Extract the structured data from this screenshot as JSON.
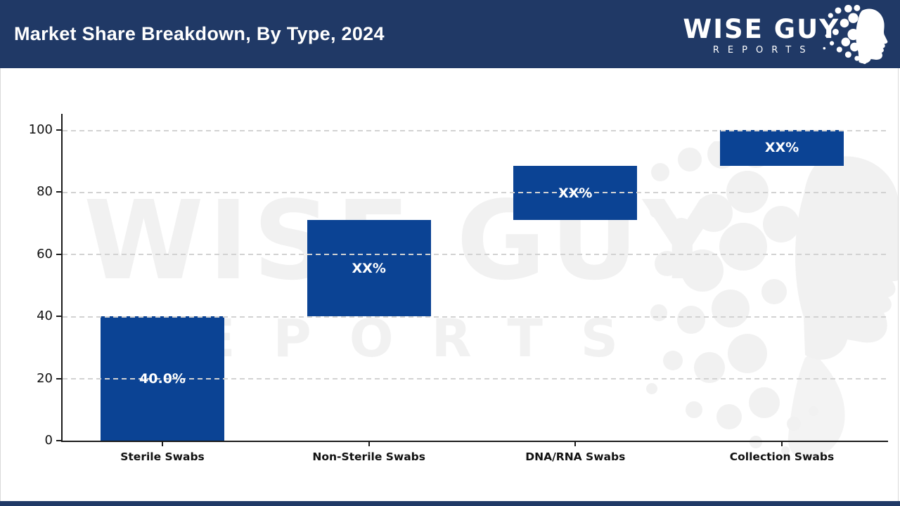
{
  "header": {
    "title": "Market Share Breakdown, By Type, 2024",
    "logo": {
      "line1": "WISE GUY",
      "line2": "REPORTS",
      "face_icon": "dotted-face-profile"
    }
  },
  "watermark": {
    "line1": "WISE GUY",
    "line2": "REPORTS",
    "face_icon": "dotted-face-profile"
  },
  "colors": {
    "header_bg": "#203966",
    "footer_bg": "#203966",
    "bar_fill": "#0b4394",
    "bar_label_text": "#ffffff",
    "grid_line": "#d2d2d2",
    "axis_line": "#1a1a1a",
    "tick_text": "#111111",
    "watermark": "#f1f1f1",
    "panel_border": "#d9d9d9"
  },
  "chart_data": {
    "type": "bar",
    "variant": "floating-cumulative-segments",
    "title": "Market Share Breakdown, By Type, 2024",
    "categories": [
      "Sterile Swabs",
      "Non-Sterile Swabs",
      "DNA/RNA Swabs",
      "Collection Swabs"
    ],
    "bars": [
      {
        "category": "Sterile Swabs",
        "start": 0,
        "end": 40,
        "label": "40.0%"
      },
      {
        "category": "Non-Sterile Swabs",
        "start": 40,
        "end": 71,
        "label": "XX%"
      },
      {
        "category": "DNA/RNA Swabs",
        "start": 71,
        "end": 88.5,
        "label": "XX%"
      },
      {
        "category": "Collection Swabs",
        "start": 88.5,
        "end": 100,
        "label": "XX%"
      }
    ],
    "yticks": [
      0,
      20,
      40,
      60,
      80,
      100
    ],
    "ylim": [
      0,
      105
    ],
    "xlabel": "",
    "ylabel": "",
    "grid": {
      "axis": "y",
      "style": "dashed",
      "above_bars": true
    },
    "legend": "none"
  }
}
